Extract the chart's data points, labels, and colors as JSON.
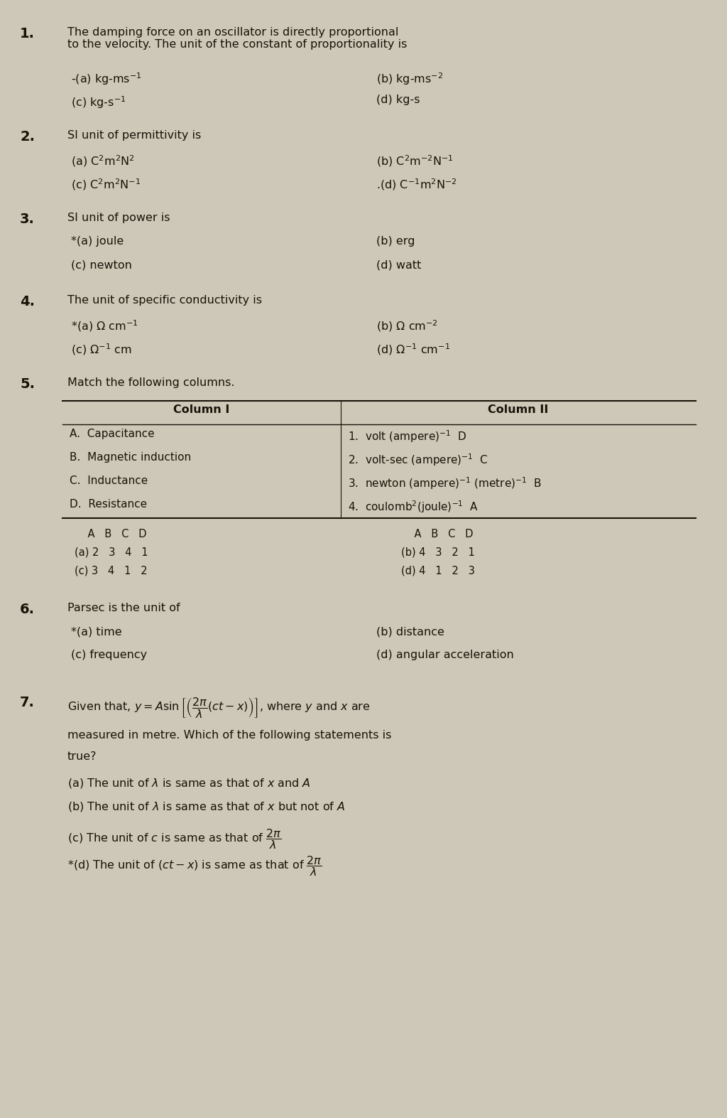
{
  "bg_color": "#cdc8b8",
  "text_color": "#1a1208",
  "font_size": 11.5,
  "num_font_size": 14,
  "q1_num": "1.",
  "q1_text": "The damping force on an oscillator is directly proportional\nto the velocity. The unit of the constant of proportionality is",
  "q1_a": "-(a) kg-ms$^{-1}$",
  "q1_b": "(b) kg-ms$^{-2}$",
  "q1_c": "(c) kg-s$^{-1}$",
  "q1_d": "(d) kg-s",
  "q2_num": "2.",
  "q2_text": "SI unit of permittivity is",
  "q2_a": "(a) C$^{2}$m$^{2}$N$^{2}$",
  "q2_b": "(b) C$^{2}$m$^{-2}$N$^{-1}$",
  "q2_c": "(c) C$^{2}$m$^{2}$N$^{-1}$",
  "q2_d": ".(d) C$^{-1}$m$^{2}$N$^{-2}$",
  "q3_num": "3.",
  "q3_text": "SI unit of power is",
  "q3_a": "*(a) joule",
  "q3_b": "(b) erg",
  "q3_c": "(c) newton",
  "q3_d": "(d) watt",
  "q4_num": "4.",
  "q4_text": "The unit of specific conductivity is",
  "q4_a": "*(a) Ω cm$^{-1}$",
  "q4_b": "(b) Ω cm$^{-2}$",
  "q4_c": "(c) Ω$^{-1}$ cm",
  "q4_d": "(d) Ω$^{-1}$ cm$^{-1}$",
  "q5_num": "5.",
  "q5_text": "Match the following columns.",
  "q5_col1_header": "Column I",
  "q5_col2_header": "Column II",
  "q5_row1_c1": "A.  Capacitance",
  "q5_row1_c2": "1.  volt (ampere)$^{-1}$  D",
  "q5_row2_c1": "B.  Magnetic induction",
  "q5_row2_c2": "2.  volt-sec (ampere)$^{-1}$  C",
  "q5_row3_c1": "C.  Inductance",
  "q5_row3_c2": "3.  newton (ampere)$^{-1}$ (metre)$^{-1}$  B",
  "q5_row4_c1": "D.  Resistance",
  "q5_row4_c2": "4.  coulomb$^{2}$(joule)$^{-1}$  A",
  "q5_abcd": "    A   B   C   D",
  "q5_opt_a": "(a) 2   3   4   1",
  "q5_opt_b": "(b) 4   3   2   1",
  "q5_opt_c": "(c) 3   4   1   2",
  "q5_opt_d": "(d) 4   1   2   3",
  "q6_num": "6.",
  "q6_text": "Parsec is the unit of",
  "q6_a": "*(a) time",
  "q6_b": "(b) distance",
  "q6_c": "(c) frequency",
  "q6_d": "(d) angular acceleration",
  "q7_num": "7.",
  "q7_text": "Given that, $y = A\\sin\\left[\\left(\\dfrac{2\\pi}{\\lambda}(ct - x)\\right)\\right]$, where $y$ and $x$ are",
  "q7_text2": "measured in metre. Which of the following statements is",
  "q7_text3": "true?",
  "q7_a": "(a) The unit of $\\lambda$ is same as that of $x$ and $A$",
  "q7_b": "(b) The unit of $\\lambda$ is same as that of $x$ but not of $A$",
  "q7_c": "(c) The unit of $c$ is same as that of $\\dfrac{2\\pi}{\\lambda}$",
  "q7_d": "*(d) The unit of $(ct - x)$ is same as that of $\\dfrac{2\\pi}{\\lambda}$"
}
